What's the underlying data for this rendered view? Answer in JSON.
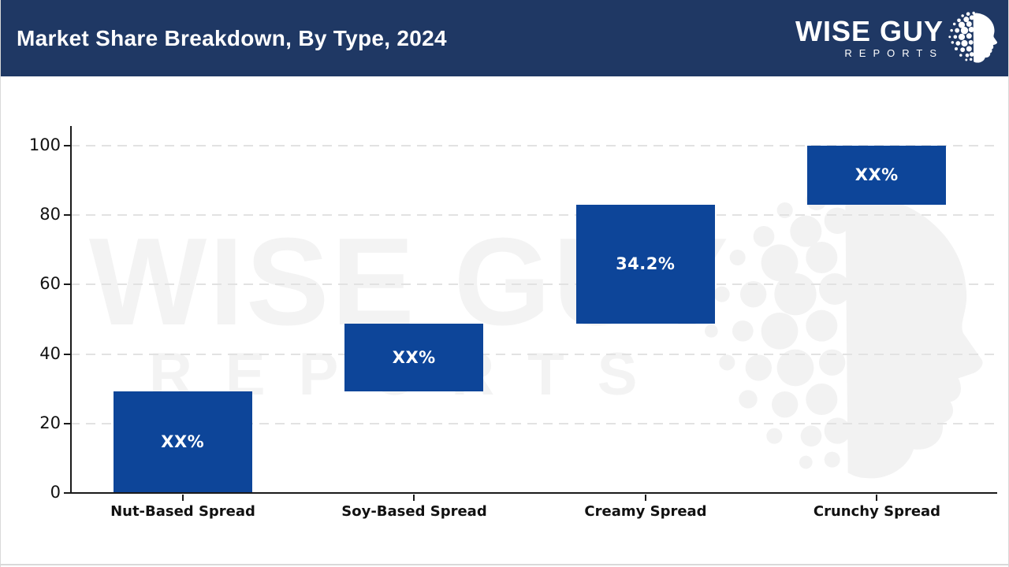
{
  "header": {
    "title": "Market Share Breakdown, By Type, 2024",
    "logo": {
      "line1": "WISE GUY",
      "line2": "REPORTS"
    }
  },
  "watermark": {
    "line1": "WISE GUY",
    "line2": "REPORTS"
  },
  "colors": {
    "header_bg": "#1f3864",
    "bar_fill": "#0d4599",
    "bar_label": "#ffffff",
    "gridline": "#e2e2e2",
    "axis": "#1a1a1a",
    "watermark": "#f3f3f3",
    "background": "#ffffff"
  },
  "chart_data": {
    "type": "bar",
    "subtype": "waterfall",
    "title": "Market Share Breakdown, By Type, 2024",
    "categories": [
      "Nut-Based Spread",
      "Soy-Based Spread",
      "Creamy Spread",
      "Crunchy Spread"
    ],
    "segments": [
      {
        "category": "Nut-Based Spread",
        "start": 0,
        "end": 29.3,
        "value_estimate": 29.3,
        "label": "XX%"
      },
      {
        "category": "Soy-Based Spread",
        "start": 29.3,
        "end": 48.8,
        "value_estimate": 19.5,
        "label": "XX%"
      },
      {
        "category": "Creamy Spread",
        "start": 48.8,
        "end": 83.0,
        "value_estimate": 34.2,
        "label": "34.2%"
      },
      {
        "category": "Crunchy Spread",
        "start": 83.0,
        "end": 100.0,
        "value_estimate": 17.0,
        "label": "XX%"
      }
    ],
    "xlabel": "",
    "ylabel": "",
    "ylim": [
      0,
      100
    ],
    "yticks": [
      0,
      20,
      40,
      60,
      80,
      100
    ],
    "grid": "horizontal-dashed",
    "legend": "none",
    "bar_color": "#0d4599",
    "label_color": "#ffffff"
  }
}
